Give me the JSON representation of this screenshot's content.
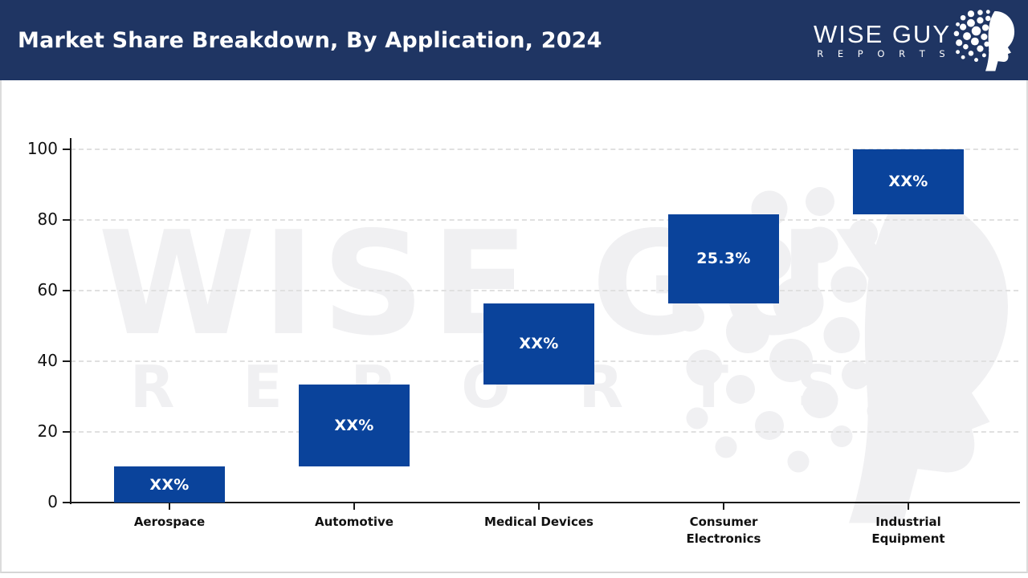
{
  "header": {
    "title": "Market Share Breakdown, By Application, 2024",
    "logo": {
      "name": "WISE GUY",
      "sub": "R E P O R T S"
    }
  },
  "watermark": {
    "line1": "WISE GUY",
    "line2": "REPORTS"
  },
  "colors": {
    "header_bg": "#1f3563",
    "bar": "#0a439b",
    "grid": "#e0e0e0",
    "axis": "#1a1a1a",
    "watermark": "#f0f0f2",
    "bar_label_text": "#ffffff",
    "tick_text": "#111111"
  },
  "chart_data": {
    "type": "bar",
    "subtype": "waterfall",
    "title": "Market Share Breakdown, By Application, 2024",
    "categories": [
      "Aerospace",
      "Automotive",
      "Medical Devices",
      "Consumer Electronics",
      "Industrial Equipment"
    ],
    "bars": [
      {
        "category": "Aerospace",
        "label_lines": [
          "Aerospace"
        ],
        "start": 0,
        "end": 10.2,
        "value": 10.2,
        "value_label": "XX%"
      },
      {
        "category": "Automotive",
        "label_lines": [
          "Automotive"
        ],
        "start": 10.2,
        "end": 33.4,
        "value": 23.2,
        "value_label": "XX%"
      },
      {
        "category": "Medical Devices",
        "label_lines": [
          "Medical Devices"
        ],
        "start": 33.4,
        "end": 56.4,
        "value": 23.0,
        "value_label": "XX%"
      },
      {
        "category": "Consumer Electronics",
        "label_lines": [
          "Consumer",
          "Electronics"
        ],
        "start": 56.4,
        "end": 81.7,
        "value": 25.3,
        "value_label": "25.3%"
      },
      {
        "category": "Industrial Equipment",
        "label_lines": [
          "Industrial",
          "Equipment"
        ],
        "start": 81.7,
        "end": 100,
        "value": 18.3,
        "value_label": "XX%"
      }
    ],
    "yticks": [
      0,
      20,
      40,
      60,
      80,
      100
    ],
    "ylim": [
      0,
      103
    ],
    "xlabel": "",
    "ylabel": "",
    "grid": "horizontal-dashed",
    "legend": "none"
  }
}
